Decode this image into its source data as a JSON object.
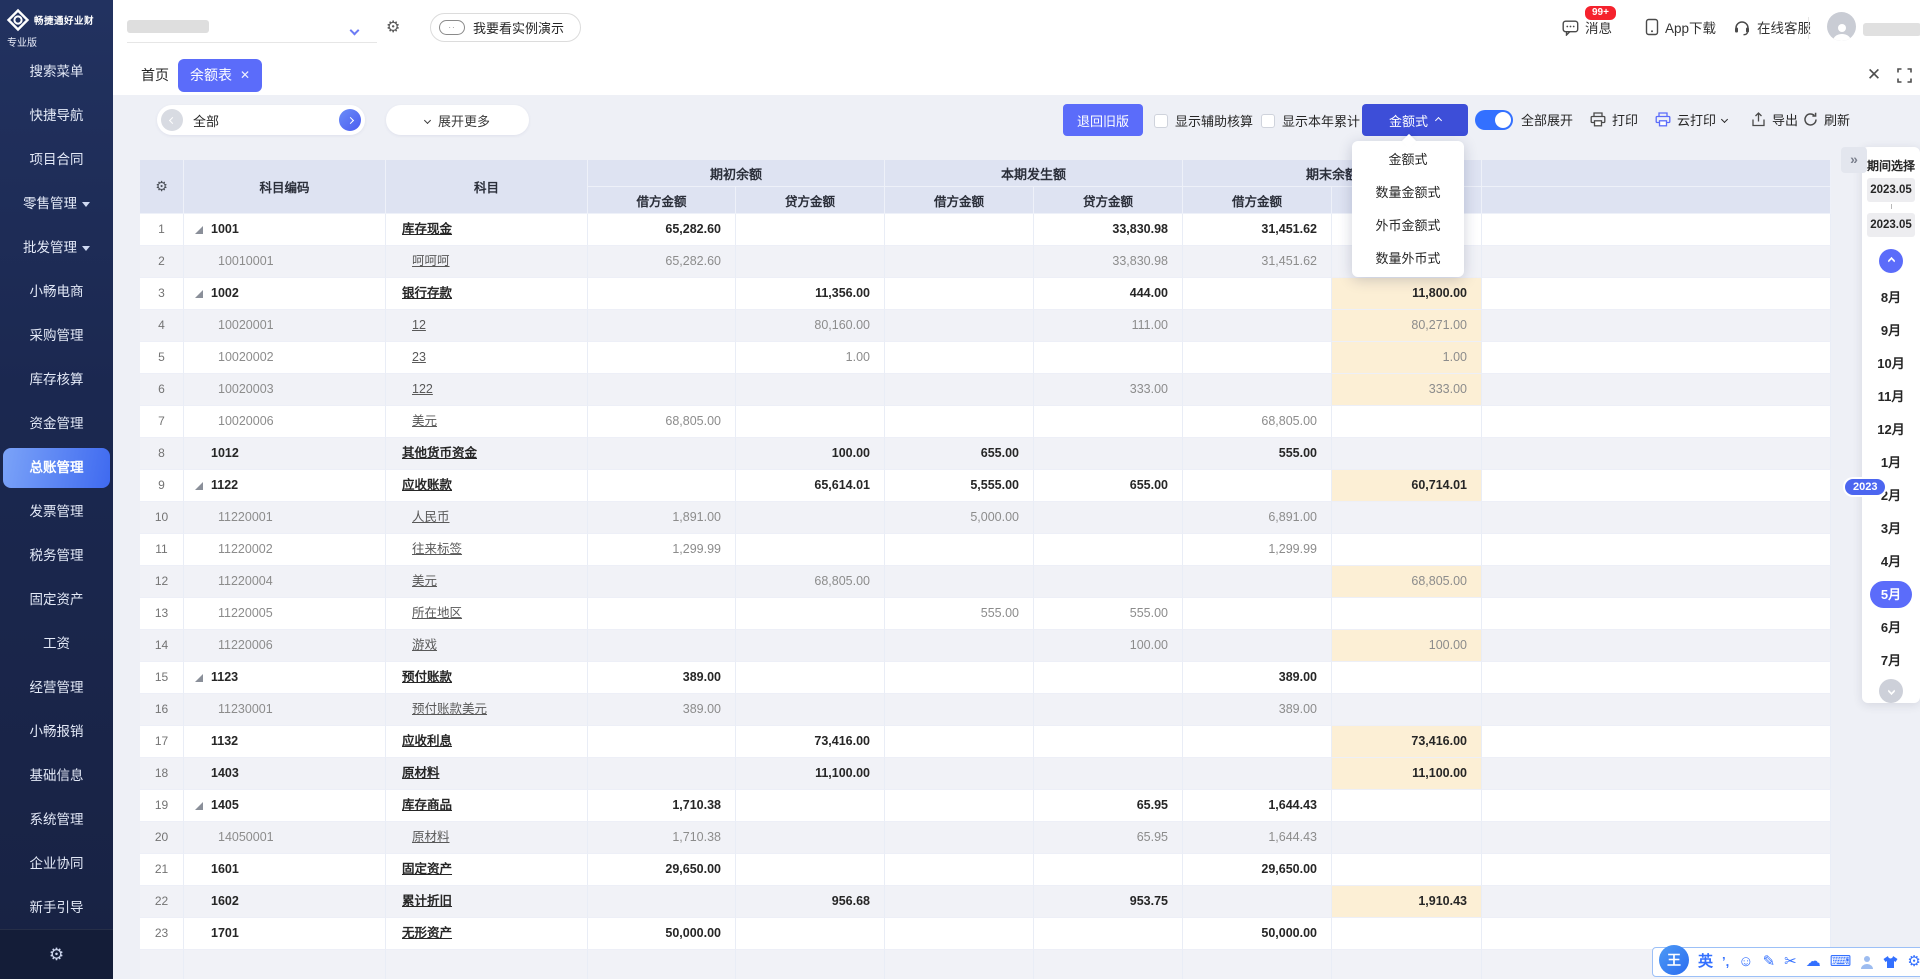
{
  "app": {
    "brand": "畅捷通好业财",
    "edition": "专业版",
    "accent": "#5b6cfa",
    "navy": "#1c2a4d"
  },
  "topbar": {
    "demo_pill": "我要看实例演示",
    "messages": "消息",
    "messages_badge": "99+",
    "app_download": "App下载",
    "online_support": "在线客服"
  },
  "tabs": {
    "home": "首页",
    "active": "余额表"
  },
  "sidebar": {
    "items": [
      {
        "label": "搜索菜单"
      },
      {
        "label": "快捷导航"
      },
      {
        "label": "项目合同"
      },
      {
        "label": "零售管理",
        "caret": true
      },
      {
        "label": "批发管理",
        "caret": true
      },
      {
        "label": "小畅电商"
      },
      {
        "label": "采购管理"
      },
      {
        "label": "库存核算"
      },
      {
        "label": "资金管理"
      },
      {
        "label": "总账管理",
        "active": true
      },
      {
        "label": "发票管理"
      },
      {
        "label": "税务管理"
      },
      {
        "label": "固定资产"
      },
      {
        "label": "工资"
      },
      {
        "label": "经营管理"
      },
      {
        "label": "小畅报销"
      },
      {
        "label": "基础信息"
      },
      {
        "label": "系统管理"
      },
      {
        "label": "企业协同"
      },
      {
        "label": "新手引导"
      }
    ]
  },
  "filterbar": {
    "scope": "全部",
    "expand_more": "展开更多"
  },
  "toolbar": {
    "back_old": "退回旧版",
    "checkbox_aux": "显示辅助核算",
    "checkbox_ytd": "显示本年累计",
    "format_btn": "金额式",
    "expand_all": "全部展开",
    "print": "打印",
    "cloud_print": "云打印",
    "export": "导出",
    "refresh": "刷新"
  },
  "format_menu": {
    "items": [
      "金额式",
      "数量金额式",
      "外币金额式",
      "数量外币式"
    ]
  },
  "table": {
    "headers": {
      "code": "科目编码",
      "subject": "科目",
      "groups": [
        {
          "label": "期初余额"
        },
        {
          "label": "本期发生额"
        },
        {
          "label": "期末余额"
        }
      ],
      "debit": "借方金额",
      "credit": "贷方金额"
    },
    "rows": [
      {
        "n": 1,
        "lvl": 0,
        "exp": true,
        "code": "1001",
        "name": "库存现金",
        "oj": "65,282.60",
        "oc": "",
        "cj": "",
        "cc": "33,830.98",
        "ej": "31,451.62",
        "ec": ""
      },
      {
        "n": 2,
        "lvl": 1,
        "exp": false,
        "code": "10010001",
        "name": "呵呵呵",
        "oj": "65,282.60",
        "oc": "",
        "cj": "",
        "cc": "33,830.98",
        "ej": "31,451.62",
        "ec": ""
      },
      {
        "n": 3,
        "lvl": 0,
        "exp": true,
        "code": "1002",
        "name": "银行存款",
        "oj": "",
        "oc": "11,356.00",
        "cj": "",
        "cc": "444.00",
        "ej": "",
        "ec": "11,800.00"
      },
      {
        "n": 4,
        "lvl": 1,
        "exp": false,
        "code": "10020001",
        "name": "12",
        "oj": "",
        "oc": "80,160.00",
        "cj": "",
        "cc": "111.00",
        "ej": "",
        "ec": "80,271.00"
      },
      {
        "n": 5,
        "lvl": 1,
        "exp": false,
        "code": "10020002",
        "name": "23",
        "oj": "",
        "oc": "1.00",
        "cj": "",
        "cc": "",
        "ej": "",
        "ec": "1.00"
      },
      {
        "n": 6,
        "lvl": 1,
        "exp": false,
        "code": "10020003",
        "name": "122",
        "oj": "",
        "oc": "",
        "cj": "",
        "cc": "333.00",
        "ej": "",
        "ec": "333.00"
      },
      {
        "n": 7,
        "lvl": 1,
        "exp": false,
        "code": "10020006",
        "name": "美元",
        "oj": "68,805.00",
        "oc": "",
        "cj": "",
        "cc": "",
        "ej": "68,805.00",
        "ec": ""
      },
      {
        "n": 8,
        "lvl": 0,
        "exp": false,
        "code": "1012",
        "name": "其他货币资金",
        "oj": "",
        "oc": "100.00",
        "cj": "655.00",
        "cc": "",
        "ej": "555.00",
        "ec": ""
      },
      {
        "n": 9,
        "lvl": 0,
        "exp": true,
        "code": "1122",
        "name": "应收账款",
        "oj": "",
        "oc": "65,614.01",
        "cj": "5,555.00",
        "cc": "655.00",
        "ej": "",
        "ec": "60,714.01"
      },
      {
        "n": 10,
        "lvl": 1,
        "exp": false,
        "code": "11220001",
        "name": "人民币",
        "oj": "1,891.00",
        "oc": "",
        "cj": "5,000.00",
        "cc": "",
        "ej": "6,891.00",
        "ec": ""
      },
      {
        "n": 11,
        "lvl": 1,
        "exp": false,
        "code": "11220002",
        "name": "往来标签",
        "oj": "1,299.99",
        "oc": "",
        "cj": "",
        "cc": "",
        "ej": "1,299.99",
        "ec": ""
      },
      {
        "n": 12,
        "lvl": 1,
        "exp": false,
        "code": "11220004",
        "name": "美元",
        "oj": "",
        "oc": "68,805.00",
        "cj": "",
        "cc": "",
        "ej": "",
        "ec": "68,805.00"
      },
      {
        "n": 13,
        "lvl": 1,
        "exp": false,
        "code": "11220005",
        "name": "所在地区",
        "oj": "",
        "oc": "",
        "cj": "555.00",
        "cc": "555.00",
        "ej": "",
        "ec": ""
      },
      {
        "n": 14,
        "lvl": 1,
        "exp": false,
        "code": "11220006",
        "name": "游戏",
        "oj": "",
        "oc": "",
        "cj": "",
        "cc": "100.00",
        "ej": "",
        "ec": "100.00"
      },
      {
        "n": 15,
        "lvl": 0,
        "exp": true,
        "code": "1123",
        "name": "预付账款",
        "oj": "389.00",
        "oc": "",
        "cj": "",
        "cc": "",
        "ej": "389.00",
        "ec": ""
      },
      {
        "n": 16,
        "lvl": 1,
        "exp": false,
        "code": "11230001",
        "name": "预付账款美元",
        "oj": "389.00",
        "oc": "",
        "cj": "",
        "cc": "",
        "ej": "389.00",
        "ec": ""
      },
      {
        "n": 17,
        "lvl": 0,
        "exp": false,
        "code": "1132",
        "name": "应收利息",
        "oj": "",
        "oc": "73,416.00",
        "cj": "",
        "cc": "",
        "ej": "",
        "ec": "73,416.00"
      },
      {
        "n": 18,
        "lvl": 0,
        "exp": false,
        "code": "1403",
        "name": "原材料",
        "oj": "",
        "oc": "11,100.00",
        "cj": "",
        "cc": "",
        "ej": "",
        "ec": "11,100.00"
      },
      {
        "n": 19,
        "lvl": 0,
        "exp": true,
        "code": "1405",
        "name": "库存商品",
        "oj": "1,710.38",
        "oc": "",
        "cj": "",
        "cc": "65.95",
        "ej": "1,644.43",
        "ec": ""
      },
      {
        "n": 20,
        "lvl": 1,
        "exp": false,
        "code": "14050001",
        "name": "原材料",
        "oj": "1,710.38",
        "oc": "",
        "cj": "",
        "cc": "65.95",
        "ej": "1,644.43",
        "ec": ""
      },
      {
        "n": 21,
        "lvl": 0,
        "exp": false,
        "code": "1601",
        "name": "固定资产",
        "oj": "29,650.00",
        "oc": "",
        "cj": "",
        "cc": "",
        "ej": "29,650.00",
        "ec": ""
      },
      {
        "n": 22,
        "lvl": 0,
        "exp": false,
        "code": "1602",
        "name": "累计折旧",
        "oj": "",
        "oc": "956.68",
        "cj": "",
        "cc": "953.75",
        "ej": "",
        "ec": "1,910.43"
      },
      {
        "n": 23,
        "lvl": 0,
        "exp": false,
        "code": "1701",
        "name": "无形资产",
        "oj": "50,000.00",
        "oc": "",
        "cj": "",
        "cc": "",
        "ej": "50,000.00",
        "ec": ""
      }
    ]
  },
  "period_panel": {
    "title": "期间选择",
    "from": "2023.05",
    "to": "2023.05",
    "year_badge": "2023",
    "months": [
      "8月",
      "9月",
      "10月",
      "11月",
      "12月",
      "1月",
      "2月",
      "3月",
      "4月",
      "5月",
      "6月",
      "7月"
    ],
    "selected": "5月"
  },
  "ime_bar": {
    "logo": "王",
    "mode": "英",
    "punct": "’,"
  },
  "colors": {
    "highlight_cream": "#fcefd5",
    "accent_blue": "#5b6cfa",
    "deep_blue": "#3d4ed8",
    "sidebar_navy": "#1c2a4d"
  }
}
